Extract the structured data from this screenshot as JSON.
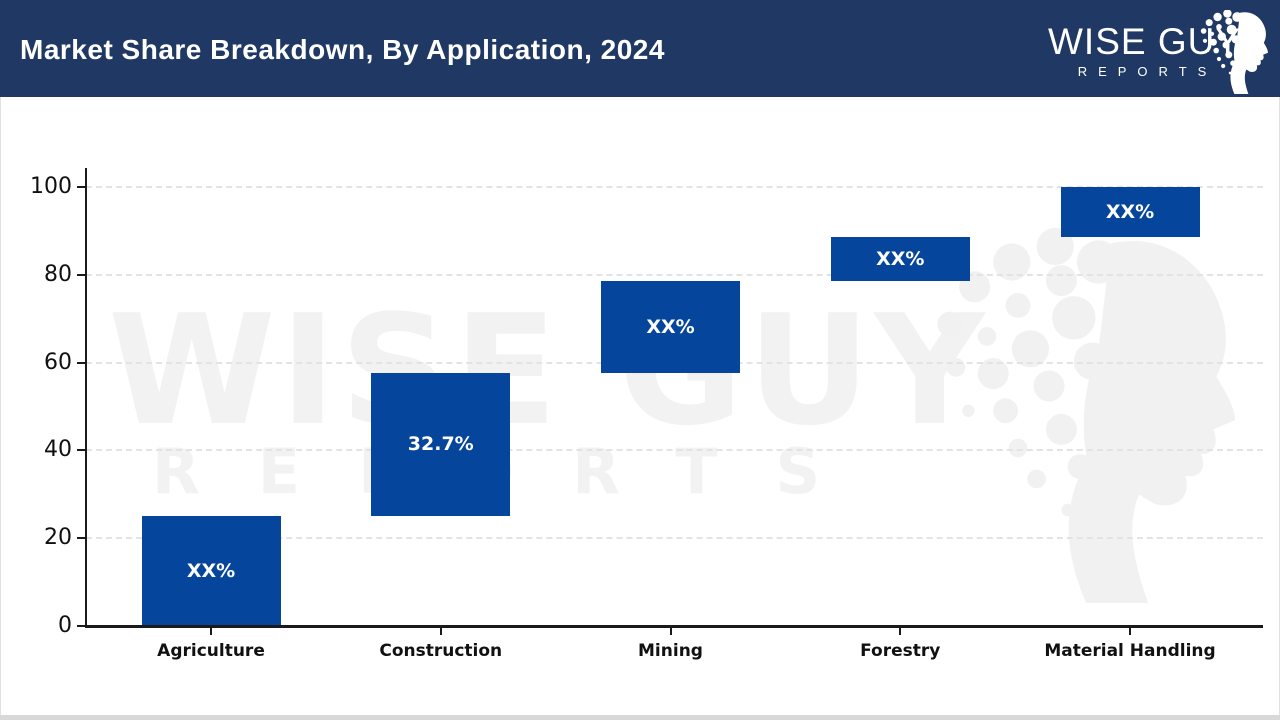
{
  "header": {
    "title": "Market Share Breakdown, By Application, 2024",
    "background_color": "#1F3864",
    "logo": {
      "line1": "WISE GUY",
      "line2": "REPORTS"
    }
  },
  "watermark": {
    "line1": "WISE GUY",
    "line2": "REPORTS"
  },
  "chart_data": {
    "type": "bar",
    "subtype": "floating-segment waterfall (market share breakdown)",
    "title": "Market Share Breakdown, By Application, 2024",
    "categories": [
      "Agriculture",
      "Construction",
      "Mining",
      "Forestry",
      "Material Handling"
    ],
    "series": [
      {
        "name": "Market share segment (%)",
        "ranges": [
          [
            0,
            25
          ],
          [
            25,
            57.7
          ],
          [
            57.7,
            78.7
          ],
          [
            78.7,
            88.5
          ],
          [
            88.5,
            100
          ]
        ],
        "labels": [
          "XX%",
          "32.7%",
          "XX%",
          "XX%",
          "XX%"
        ]
      }
    ],
    "known_values": {
      "Construction": 32.7
    },
    "xlabel": "",
    "ylabel": "",
    "yticks": [
      0,
      20,
      40,
      60,
      80,
      100
    ],
    "ylim": [
      0,
      105
    ],
    "grid": {
      "axis": "y",
      "style": "dashed",
      "color": "#e3e3e3"
    },
    "legend": "none",
    "bar_color": "#05459B",
    "bar_label_color": "#ffffff",
    "axis_color": "#1a1a1a"
  }
}
